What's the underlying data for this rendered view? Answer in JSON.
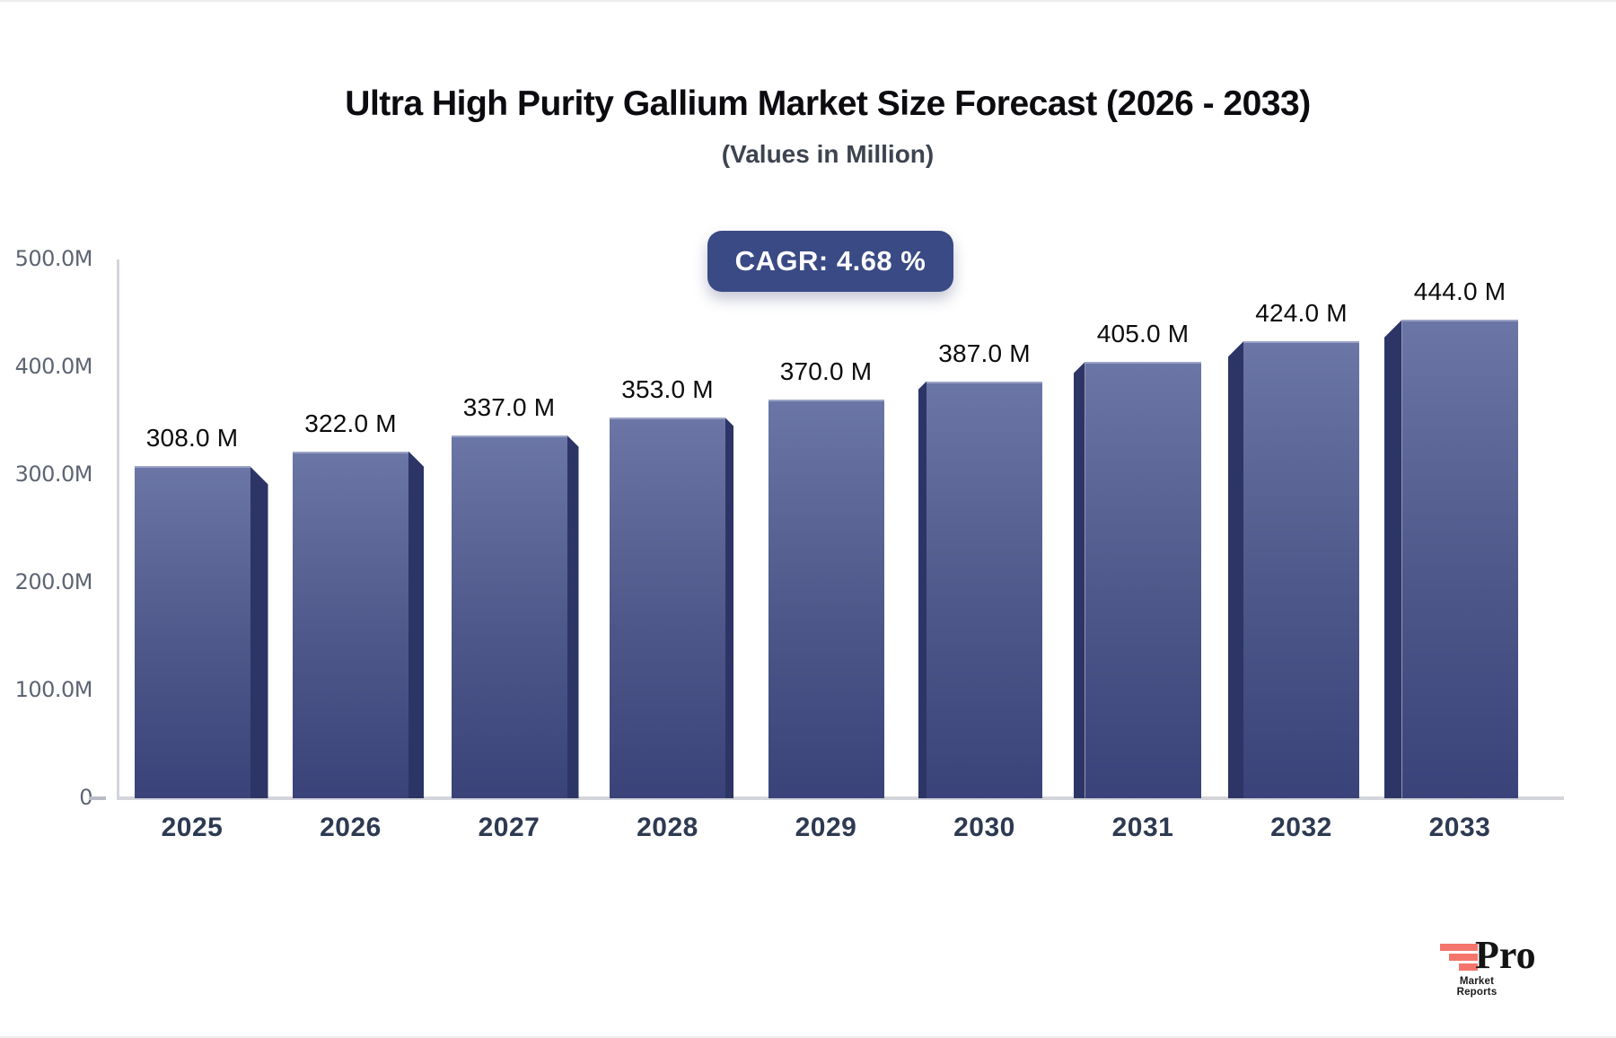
{
  "chart_data": {
    "type": "bar",
    "title": "Ultra High Purity Gallium Market Size Forecast (2026 - 2033)",
    "subtitle": "(Values in Million)",
    "cagr": "CAGR: 4.68 %",
    "categories": [
      "2025",
      "2026",
      "2027",
      "2028",
      "2029",
      "2030",
      "2031",
      "2032",
      "2033"
    ],
    "values": [
      308,
      322,
      337,
      353,
      370,
      387,
      405,
      424,
      444
    ],
    "value_labels": [
      "308.0 M",
      "322.0 M",
      "337.0 M",
      "353.0 M",
      "370.0 M",
      "387.0 M",
      "405.0 M",
      "424.0 M",
      "444.0 M"
    ],
    "unit": "Million",
    "xlabel": "",
    "ylabel": "",
    "ylim": [
      0,
      500
    ],
    "grid": false,
    "legend": false,
    "y_ticks": [
      {
        "value": 500,
        "label": "500.0M"
      },
      {
        "value": 400,
        "label": "400.0M"
      },
      {
        "value": 300,
        "label": "300.0M"
      },
      {
        "value": 200,
        "label": "200.0M"
      },
      {
        "value": 100,
        "label": "100.0M"
      },
      {
        "value": 0,
        "label": "0"
      }
    ],
    "colors": {
      "bar_front_top": "#6B76A6",
      "bar_front_bottom": "#3A4379",
      "bar_side": "#2C3566",
      "bar_top_highlight": "#9AA3C6",
      "badge_bg": "#3A4A85",
      "badge_text": "#FFFFFF",
      "axis_line": "#D4D5DB",
      "y_label": "#5D6572",
      "x_label": "#2D3A52",
      "value_label": "#0C0C0C"
    }
  },
  "logo": {
    "name": "Pro",
    "tagline": "Market Reports",
    "accent": "#F5756C"
  }
}
